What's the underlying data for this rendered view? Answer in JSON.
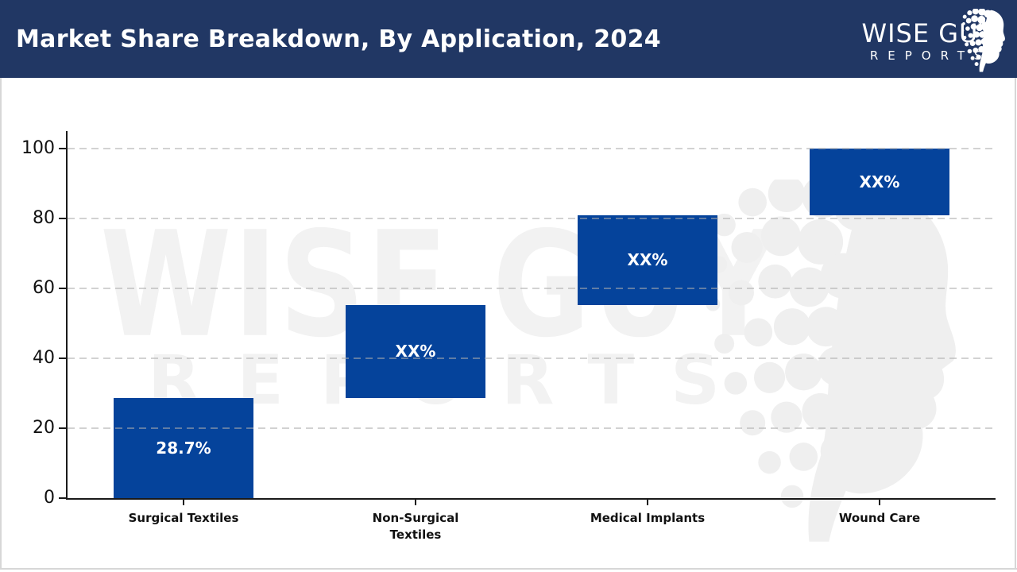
{
  "header": {
    "title": "Market Share Breakdown, By Application, 2024",
    "logo": {
      "line1": "WISE GUY",
      "line2": "REPORTS"
    }
  },
  "watermark": {
    "line1": "WISE GUY",
    "line2": "REPORTS"
  },
  "colors": {
    "header_bg": "#213764",
    "bar": "#05439b",
    "grid": "#d3d3d3",
    "axis": "#1a1a1a",
    "bar_label_text": "#ffffff",
    "watermark": "#f2f2f2",
    "frame_border": "#d7d7d7"
  },
  "chart_data": {
    "type": "bar",
    "subtype": "waterfall",
    "title": "Market Share Breakdown, By Application, 2024",
    "categories": [
      "Surgical Textiles",
      "Non-Surgical Textiles",
      "Medical Implants",
      "Wound Care"
    ],
    "segments": [
      {
        "category": "Surgical Textiles",
        "start": 0,
        "end": 28.7,
        "label": "28.7%"
      },
      {
        "category": "Non-Surgical Textiles",
        "start": 28.7,
        "end": 55.3,
        "label": "XX%"
      },
      {
        "category": "Medical Implants",
        "start": 55.3,
        "end": 81.0,
        "label": "XX%"
      },
      {
        "category": "Wound Care",
        "start": 81.0,
        "end": 100.0,
        "label": "XX%"
      }
    ],
    "xlabel": "",
    "ylabel": "",
    "ylim": [
      0,
      100
    ],
    "yticks": [
      0,
      20,
      40,
      60,
      80,
      100
    ],
    "grid": "horizontal dashed",
    "legend": "none",
    "bar_color": "#05439b"
  }
}
